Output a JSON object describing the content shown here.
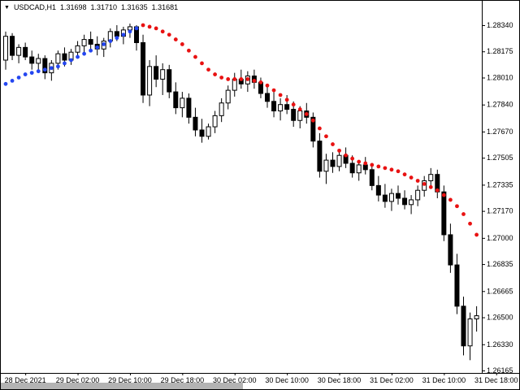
{
  "header": {
    "symbol_period": "USDCAD,H1",
    "open": "1.31698",
    "high": "1.31710",
    "low": "1.31635",
    "close": "1.31681",
    "dropdown_icon": "▼"
  },
  "colors": {
    "background": "#ffffff",
    "axis": "#000000",
    "candle_bear_fill": "#000000",
    "candle_bull_fill": "#ffffff",
    "candle_outline": "#000000",
    "ma_blue": "#2446f0",
    "ma_red": "#e81212",
    "text": "#000000",
    "scrollbar_thumb": "#b3b3b3"
  },
  "chart_data": {
    "type": "candlestick",
    "symbol": "USDCAD",
    "timeframe": "H1",
    "ylim": [
      1.26165,
      1.2834
    ],
    "price_axis_labels": [
      "1.28340",
      "1.28175",
      "1.28010",
      "1.27840",
      "1.27670",
      "1.27505",
      "1.27335",
      "1.27170",
      "1.27000",
      "1.26835",
      "1.26665",
      "1.26500",
      "1.26330",
      "1.26165"
    ],
    "time_axis_labels": [
      {
        "label": "28 Dec 2021",
        "candle_index": 3
      },
      {
        "label": "29 Dec 02:00",
        "candle_index": 11
      },
      {
        "label": "29 Dec 10:00",
        "candle_index": 19
      },
      {
        "label": "29 Dec 18:00",
        "candle_index": 27
      },
      {
        "label": "30 Dec 02:00",
        "candle_index": 35
      },
      {
        "label": "30 Dec 10:00",
        "candle_index": 43
      },
      {
        "label": "30 Dec 18:00",
        "candle_index": 51
      },
      {
        "label": "31 Dec 02:00",
        "candle_index": 59
      },
      {
        "label": "31 Dec 10:00",
        "candle_index": 67
      },
      {
        "label": "31 Dec 18:00",
        "candle_index": 75
      }
    ],
    "candles_ohlc": [
      [
        1.2812,
        1.283,
        1.2806,
        1.2827
      ],
      [
        1.2827,
        1.2829,
        1.2812,
        1.2815
      ],
      [
        1.2815,
        1.2822,
        1.281,
        1.282
      ],
      [
        1.282,
        1.2823,
        1.2812,
        1.2814
      ],
      [
        1.2814,
        1.2818,
        1.2806,
        1.281
      ],
      [
        1.281,
        1.2816,
        1.2804,
        1.2813
      ],
      [
        1.2813,
        1.2815,
        1.28,
        1.2804
      ],
      [
        1.2804,
        1.2812,
        1.2799,
        1.281
      ],
      [
        1.281,
        1.2818,
        1.2806,
        1.2816
      ],
      [
        1.2816,
        1.282,
        1.2808,
        1.2812
      ],
      [
        1.2812,
        1.2819,
        1.2809,
        1.2817
      ],
      [
        1.2817,
        1.2824,
        1.2813,
        1.2821
      ],
      [
        1.2821,
        1.2828,
        1.2816,
        1.2825
      ],
      [
        1.2825,
        1.283,
        1.2818,
        1.2822
      ],
      [
        1.2822,
        1.2827,
        1.2815,
        1.2819
      ],
      [
        1.2819,
        1.2826,
        1.2814,
        1.2824
      ],
      [
        1.2824,
        1.2832,
        1.282,
        1.283
      ],
      [
        1.283,
        1.2834,
        1.2824,
        1.2827
      ],
      [
        1.2827,
        1.2833,
        1.2822,
        1.2831
      ],
      [
        1.2831,
        1.2835,
        1.2826,
        1.2833
      ],
      [
        1.2833,
        1.2834,
        1.2818,
        1.2823
      ],
      [
        1.2823,
        1.2828,
        1.2785,
        1.279
      ],
      [
        1.279,
        1.2812,
        1.2783,
        1.2808
      ],
      [
        1.2808,
        1.2815,
        1.2795,
        1.28
      ],
      [
        1.28,
        1.281,
        1.279,
        1.2806
      ],
      [
        1.2806,
        1.2809,
        1.2788,
        1.2792
      ],
      [
        1.2792,
        1.2798,
        1.2778,
        1.2782
      ],
      [
        1.2782,
        1.2792,
        1.2776,
        1.2788
      ],
      [
        1.2788,
        1.2791,
        1.2772,
        1.2776
      ],
      [
        1.2776,
        1.2782,
        1.2764,
        1.2768
      ],
      [
        1.2768,
        1.2775,
        1.276,
        1.2764
      ],
      [
        1.2764,
        1.2772,
        1.2762,
        1.277
      ],
      [
        1.277,
        1.278,
        1.2766,
        1.2777
      ],
      [
        1.2777,
        1.2788,
        1.2773,
        1.2785
      ],
      [
        1.2785,
        1.2796,
        1.2781,
        1.2793
      ],
      [
        1.2793,
        1.2804,
        1.2789,
        1.28
      ],
      [
        1.28,
        1.2806,
        1.2794,
        1.2797
      ],
      [
        1.2797,
        1.2805,
        1.2792,
        1.2802
      ],
      [
        1.2802,
        1.2806,
        1.2794,
        1.2798
      ],
      [
        1.2798,
        1.2801,
        1.2788,
        1.2791
      ],
      [
        1.2791,
        1.2797,
        1.2782,
        1.2786
      ],
      [
        1.2786,
        1.2792,
        1.2776,
        1.278
      ],
      [
        1.278,
        1.2788,
        1.2774,
        1.2784
      ],
      [
        1.2784,
        1.279,
        1.2778,
        1.2781
      ],
      [
        1.2781,
        1.2786,
        1.277,
        1.2774
      ],
      [
        1.2774,
        1.2783,
        1.2769,
        1.278
      ],
      [
        1.278,
        1.2785,
        1.2772,
        1.2776
      ],
      [
        1.2776,
        1.2779,
        1.2757,
        1.2761
      ],
      [
        1.2761,
        1.2766,
        1.2738,
        1.2742
      ],
      [
        1.2742,
        1.2753,
        1.2734,
        1.2749
      ],
      [
        1.2749,
        1.2754,
        1.2741,
        1.2745
      ],
      [
        1.2745,
        1.2756,
        1.2742,
        1.2752
      ],
      [
        1.2752,
        1.2757,
        1.2744,
        1.2747
      ],
      [
        1.2747,
        1.2752,
        1.2738,
        1.2741
      ],
      [
        1.2741,
        1.2749,
        1.2736,
        1.2746
      ],
      [
        1.2746,
        1.2751,
        1.274,
        1.2743
      ],
      [
        1.2743,
        1.2746,
        1.273,
        1.2733
      ],
      [
        1.2733,
        1.2739,
        1.2723,
        1.2727
      ],
      [
        1.2727,
        1.2734,
        1.2719,
        1.2723
      ],
      [
        1.2723,
        1.2731,
        1.2717,
        1.2728
      ],
      [
        1.2728,
        1.2733,
        1.2721,
        1.2725
      ],
      [
        1.2725,
        1.273,
        1.2718,
        1.2721
      ],
      [
        1.2721,
        1.2727,
        1.2715,
        1.2724
      ],
      [
        1.2724,
        1.2733,
        1.272,
        1.273
      ],
      [
        1.273,
        1.2739,
        1.2726,
        1.2736
      ],
      [
        1.2736,
        1.2744,
        1.2731,
        1.274
      ],
      [
        1.274,
        1.2743,
        1.2725,
        1.2729
      ],
      [
        1.2729,
        1.2733,
        1.2698,
        1.2702
      ],
      [
        1.2702,
        1.2709,
        1.2678,
        1.2683
      ],
      [
        1.2683,
        1.269,
        1.2652,
        1.2657
      ],
      [
        1.2657,
        1.2663,
        1.2626,
        1.2632
      ],
      [
        1.2632,
        1.2653,
        1.2623,
        1.2649
      ],
      [
        1.2649,
        1.2657,
        1.2641,
        1.2651
      ]
    ],
    "ma": {
      "name": "dotted-moving-average",
      "blue_until_index": 20,
      "values": [
        1.2797,
        1.2799,
        1.2801,
        1.2803,
        1.2804,
        1.2805,
        1.2806,
        1.2807,
        1.2808,
        1.281,
        1.2812,
        1.2814,
        1.2816,
        1.2818,
        1.282,
        1.2822,
        1.2824,
        1.2826,
        1.2828,
        1.283,
        1.2832,
        1.2834,
        1.2833,
        1.2832,
        1.283,
        1.2828,
        1.2825,
        1.2822,
        1.2818,
        1.2814,
        1.281,
        1.2806,
        1.2803,
        1.2801,
        1.28,
        1.28,
        1.28,
        1.28,
        1.2799,
        1.2798,
        1.2796,
        1.2793,
        1.279,
        1.2787,
        1.2784,
        1.2781,
        1.2778,
        1.2774,
        1.2769,
        1.2764,
        1.2759,
        1.2755,
        1.2752,
        1.275,
        1.2748,
        1.2747,
        1.2746,
        1.2745,
        1.2744,
        1.2743,
        1.2742,
        1.274,
        1.2738,
        1.2736,
        1.2734,
        1.2732,
        1.273,
        1.2727,
        1.2724,
        1.272,
        1.2715,
        1.2709,
        1.2702
      ]
    }
  }
}
